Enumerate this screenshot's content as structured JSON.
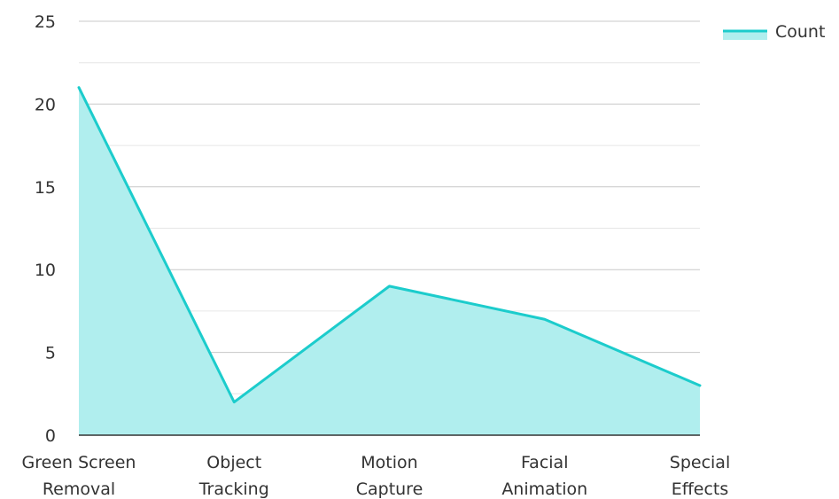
{
  "chart_data": {
    "type": "area",
    "categories": [
      [
        "Green Screen",
        "Removal"
      ],
      [
        "Object",
        "Tracking"
      ],
      [
        "Motion",
        "Capture"
      ],
      [
        "Facial",
        "Animation"
      ],
      [
        "Special",
        "Effects"
      ]
    ],
    "series": [
      {
        "name": "Count",
        "values": [
          21,
          2,
          9,
          7,
          3
        ]
      }
    ],
    "title": "",
    "xlabel": "",
    "ylabel": "",
    "ylim": [
      0,
      25
    ],
    "yticks": [
      "0",
      "5",
      "10",
      "15",
      "20",
      "25"
    ],
    "grid": true,
    "minor_grid": true,
    "legend_position": "top-right",
    "colors": {
      "line": "#1ccccc",
      "fill": "#b0eeee",
      "grid_major": "#c8c8c8",
      "grid_minor": "#e6e6e6",
      "axis": "#333333"
    }
  }
}
